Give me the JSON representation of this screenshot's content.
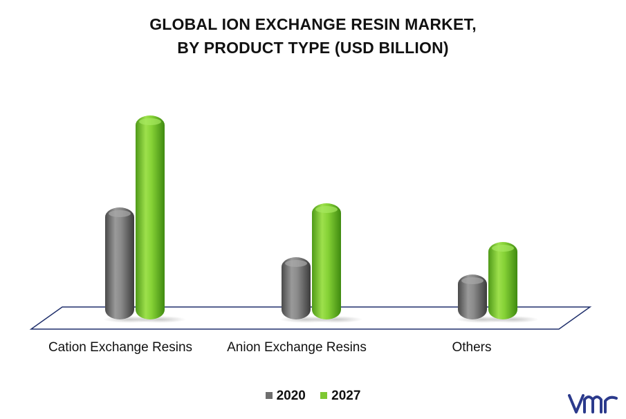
{
  "title_line1": "GLOBAL ION EXCHANGE RESIN MARKET,",
  "title_line2": "BY PRODUCT TYPE (USD BILLION)",
  "chart_data": {
    "type": "bar",
    "categories": [
      "Cation Exchange Resins",
      "Anion Exchange Resins",
      "Others"
    ],
    "series": [
      {
        "name": "2020",
        "values": [
          1.62,
          0.9,
          0.65
        ],
        "color": "#7a7a7a"
      },
      {
        "name": "2027",
        "values": [
          2.95,
          1.68,
          1.12
        ],
        "color": "#7ec832"
      }
    ],
    "ylim": [
      0,
      3.2
    ],
    "grid": false,
    "legend": "bottom",
    "logo": "vmr-logo"
  }
}
